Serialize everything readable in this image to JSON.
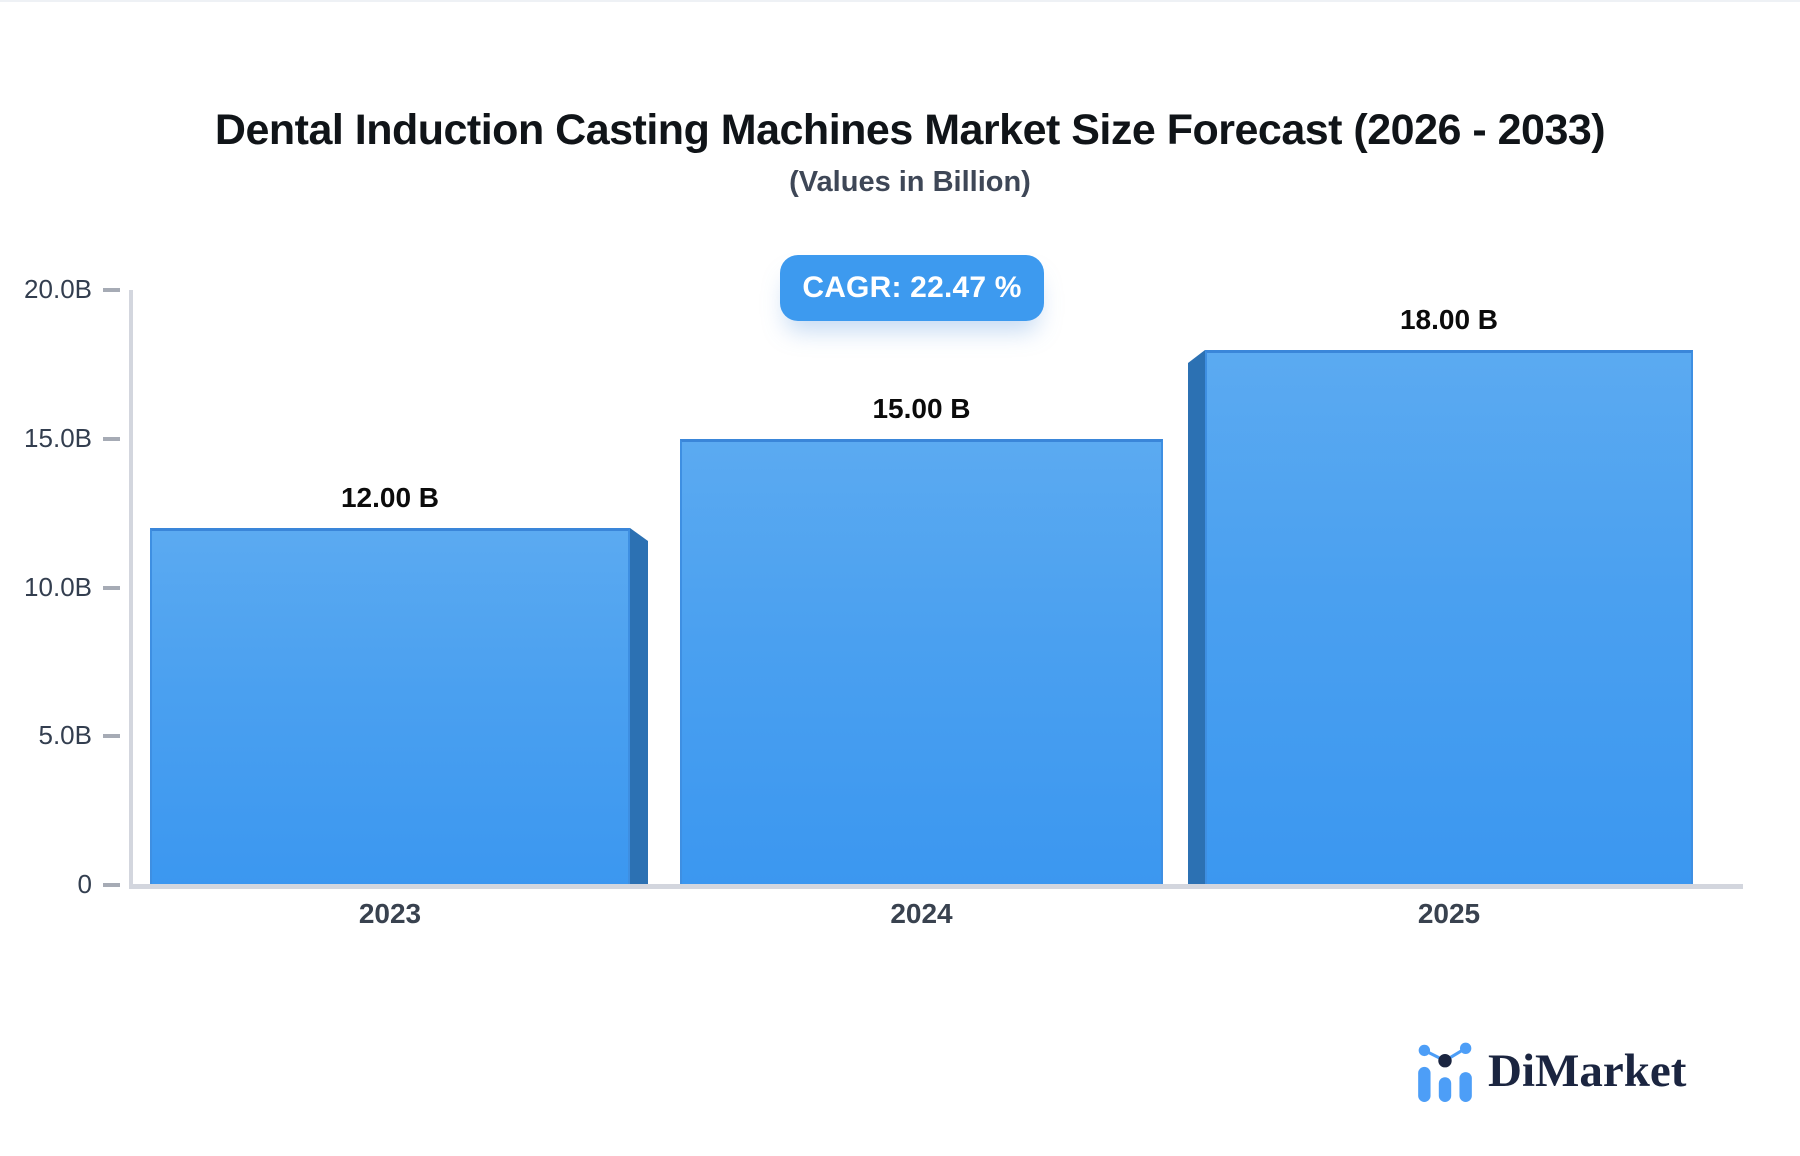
{
  "title": "Dental Induction Casting Machines Market Size Forecast (2026 - 2033)",
  "subtitle": "(Values in Billion)",
  "cagr_label": "CAGR: 22.47 %",
  "chart_data": {
    "type": "bar",
    "title": "Dental Induction Casting Machines Market Size Forecast (2026 - 2033)",
    "subtitle": "(Values in Billion)",
    "categories": [
      "2023",
      "2024",
      "2025"
    ],
    "values": [
      12.0,
      15.0,
      18.0
    ],
    "value_labels": [
      "12.00 B",
      "15.00 B",
      "18.00 B"
    ],
    "cagr_text": "CAGR: 22.47 %",
    "xlabel": "",
    "ylabel": "",
    "ylim": [
      0,
      20
    ],
    "ytick_values": [
      20,
      15,
      10,
      5,
      0
    ],
    "ytick_labels": [
      "20.0B",
      "15.0B",
      "10.0B",
      "5.0B",
      "0"
    ],
    "grid": false,
    "legend": false
  },
  "logo": {
    "text": "DiMarket",
    "icon": "bar-chart-logo-icon"
  },
  "colors": {
    "bar_top": "#5baaf1",
    "bar_bottom": "#3b97f0",
    "bar_top_border": "#3a86d9",
    "bar_side_3d": "#2c71b3",
    "badge_bg": "#3d9aef",
    "badge_text": "#ffffff",
    "axis_line": "#d3d6de",
    "tick_dash": "#a6abb5",
    "axis_text": "#333e4f",
    "title_text": "#101418",
    "subtitle_text": "#3e4757",
    "value_label_text": "#0b0b0b",
    "logo_navy": "#1b2540",
    "logo_blue": "#4d9ef7"
  }
}
